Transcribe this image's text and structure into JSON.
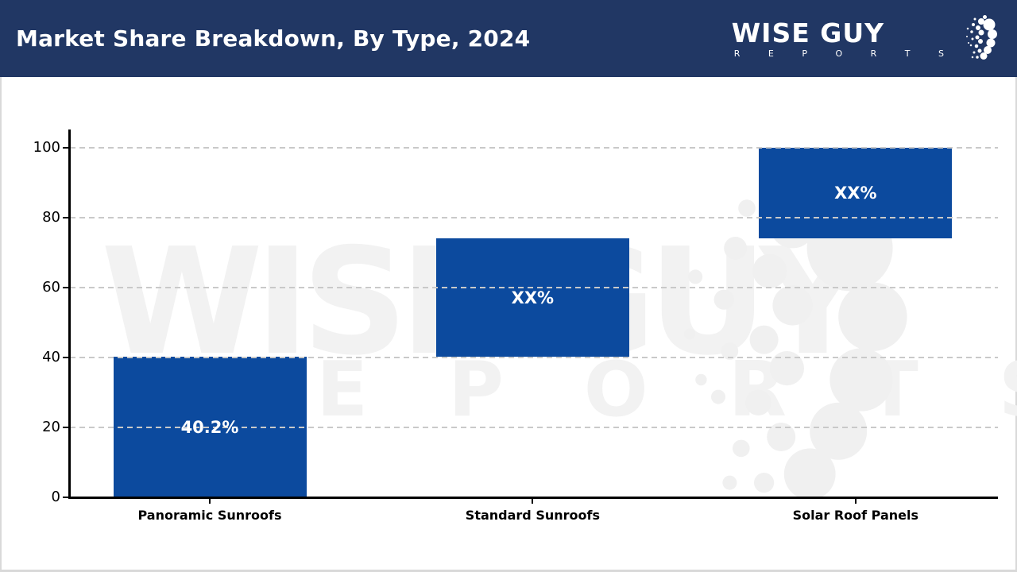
{
  "header": {
    "title": "Market Share Breakdown, By Type, 2024",
    "bg_color": "#213764",
    "logo": {
      "line1": "WISE GUY",
      "line2": "R E P O R T S"
    }
  },
  "watermark": {
    "line1": "WISE GUY",
    "line2": "R E P O R T S"
  },
  "chart_data": {
    "type": "bar",
    "subtype": "floating_segment_columns",
    "title": "Market Share Breakdown, By Type, 2024",
    "categories": [
      "Panoramic Sunroofs",
      "Standard Sunroofs",
      "Solar Roof Panels"
    ],
    "bars": [
      {
        "category": "Panoramic Sunroofs",
        "start": 0,
        "end": 40.2,
        "label": "40.2%"
      },
      {
        "category": "Standard Sunroofs",
        "start": 40.2,
        "end": 74.1,
        "label": "XX%"
      },
      {
        "category": "Solar Roof Panels",
        "start": 74.1,
        "end": 100,
        "label": "XX%"
      }
    ],
    "yticks": [
      0,
      20,
      40,
      60,
      80,
      100
    ],
    "ylim": [
      0,
      105
    ],
    "xlabel": "",
    "ylabel": "",
    "grid": "horizontal-dashed",
    "grid_color": "#c9c9c9",
    "bar_color": "#0c4a9e",
    "bar_label_color": "#ffffff",
    "axis_color": "#000000",
    "legend": "none"
  }
}
